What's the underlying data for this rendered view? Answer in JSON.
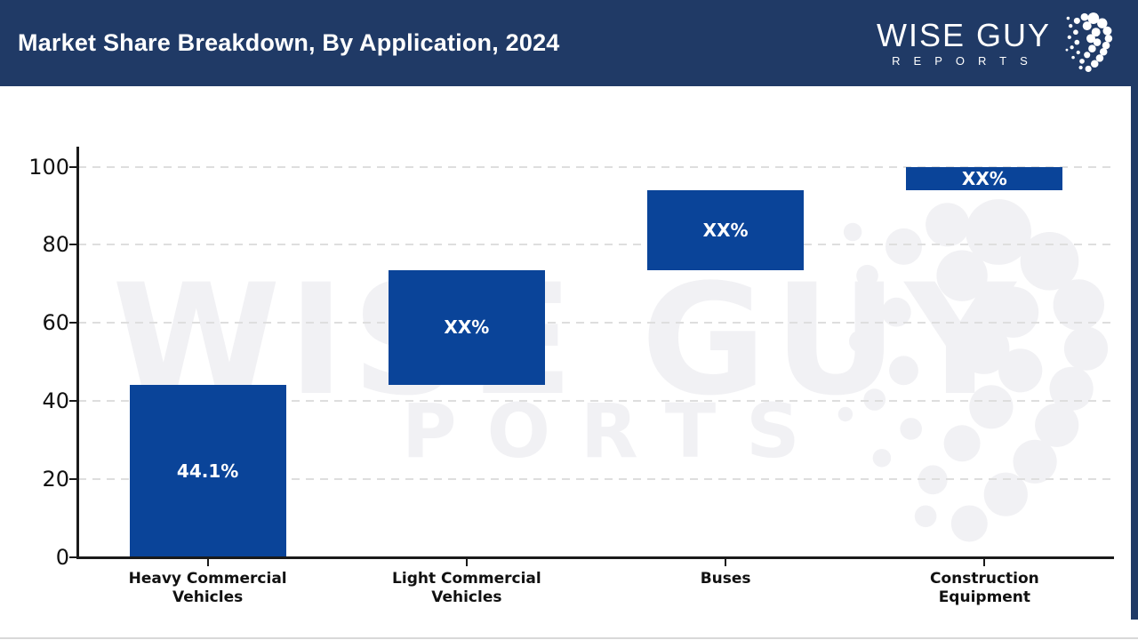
{
  "header": {
    "title": "Market Share Breakdown, By Application, 2024",
    "bg_color": "#203a66",
    "logo": {
      "wordmark": "WISE GUY",
      "subtitle": "REPORTS"
    }
  },
  "watermark": {
    "line1": "WISE GUY",
    "line2": "PORTS"
  },
  "chart_data": {
    "type": "bar",
    "subtype": "waterfall",
    "title": "Market Share Breakdown, By Application, 2024",
    "unit": "%",
    "categories": [
      "Heavy Commercial Vehicles",
      "Light Commercial Vehicles",
      "Buses",
      "Construction Equipment"
    ],
    "category_lines": [
      [
        "Heavy Commercial",
        "Vehicles"
      ],
      [
        "Light Commercial",
        "Vehicles"
      ],
      [
        "Buses"
      ],
      [
        "Construction",
        "Equipment"
      ]
    ],
    "segments": [
      {
        "category": "Heavy Commercial Vehicles",
        "start": 0,
        "end": 44.1,
        "value_label": "44.1%",
        "value_est": 44.1
      },
      {
        "category": "Light Commercial Vehicles",
        "start": 44.1,
        "end": 73.6,
        "value_label": "XX%",
        "value_est": 29.5
      },
      {
        "category": "Buses",
        "start": 73.6,
        "end": 94.1,
        "value_label": "XX%",
        "value_est": 20.5
      },
      {
        "category": "Construction Equipment",
        "start": 94.1,
        "end": 100,
        "value_label": "XX%",
        "value_est": 5.9
      }
    ],
    "ylim": [
      0,
      100
    ],
    "yticks": [
      0,
      20,
      40,
      60,
      80,
      100
    ],
    "bar_color": "#0a4499",
    "grid": "horizontal-dashed",
    "legend": "none"
  }
}
